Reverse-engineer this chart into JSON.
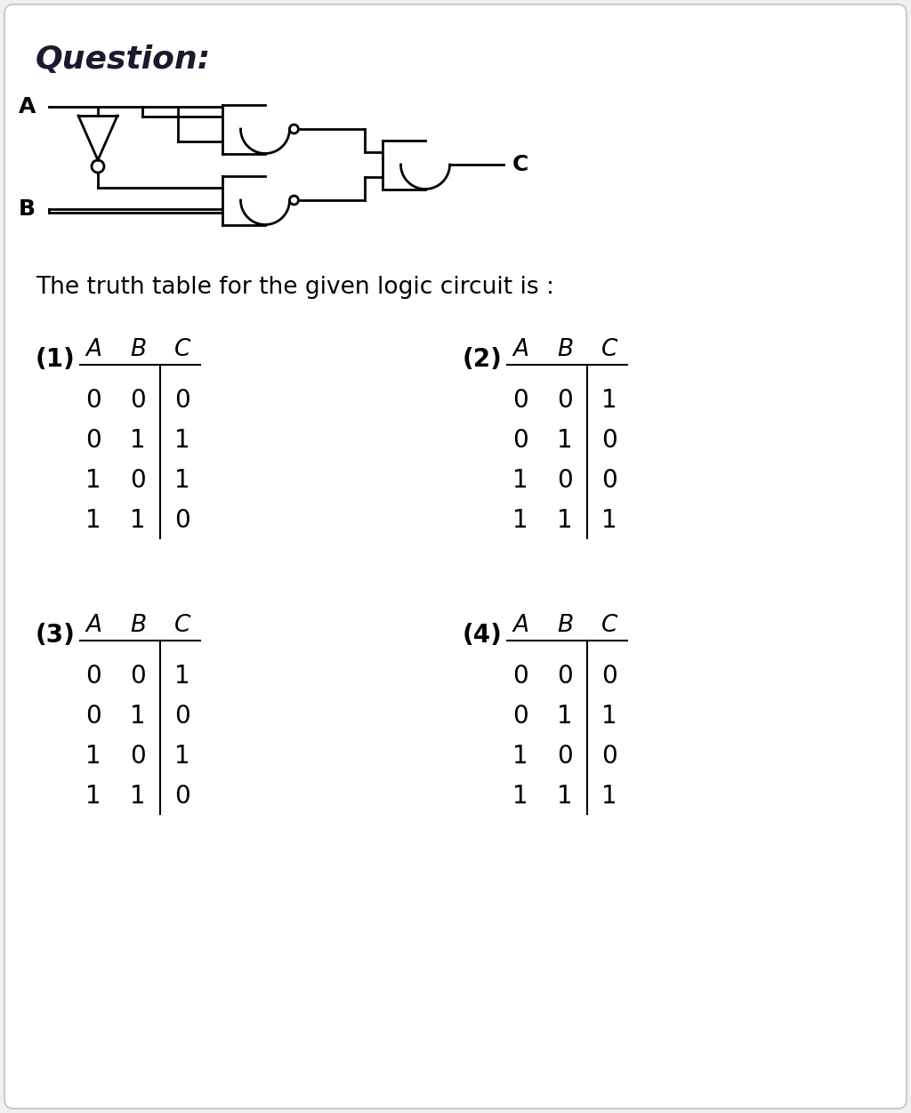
{
  "title": "Question:",
  "subtitle": "The truth table for the given logic circuit is :",
  "bg_color": "#f0f0f0",
  "white_bg": "#ffffff",
  "tables": [
    {
      "label": "(1)",
      "headers": [
        "A",
        "B",
        "C"
      ],
      "rows": [
        [
          "0",
          "0",
          "0"
        ],
        [
          "0",
          "1",
          "1"
        ],
        [
          "1",
          "0",
          "1"
        ],
        [
          "1",
          "1",
          "0"
        ]
      ]
    },
    {
      "label": "(2)",
      "headers": [
        "A",
        "B",
        "C"
      ],
      "rows": [
        [
          "0",
          "0",
          "1"
        ],
        [
          "0",
          "1",
          "0"
        ],
        [
          "1",
          "0",
          "0"
        ],
        [
          "1",
          "1",
          "1"
        ]
      ]
    },
    {
      "label": "(3)",
      "headers": [
        "A",
        "B",
        "C"
      ],
      "rows": [
        [
          "0",
          "0",
          "1"
        ],
        [
          "0",
          "1",
          "0"
        ],
        [
          "1",
          "0",
          "1"
        ],
        [
          "1",
          "1",
          "0"
        ]
      ]
    },
    {
      "label": "(4)",
      "headers": [
        "A",
        "B",
        "C"
      ],
      "rows": [
        [
          "0",
          "0",
          "0"
        ],
        [
          "0",
          "1",
          "1"
        ],
        [
          "1",
          "0",
          "0"
        ],
        [
          "1",
          "1",
          "1"
        ]
      ]
    }
  ]
}
